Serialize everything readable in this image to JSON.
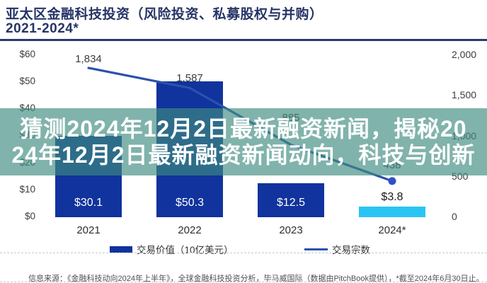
{
  "header": {
    "title_line1": "亚太区金融科技投资（风险投资、私募股权与并购）",
    "title_line2": "2021-2024*"
  },
  "overlay": {
    "text_line1": "猜测2024年12月2日最新融资新闻，揭秘20",
    "text_line2": "24年12月2日最新融资新闻动向，科技与创新",
    "band_color": "#3e8c80"
  },
  "legend": {
    "bar_label": "交易价值（10亿美元）",
    "line_label": "交易宗数"
  },
  "footer": {
    "source": "信息来源：《金融科技动向2024年上半年》，全球金融科技投资分析，毕马威国际（数据由PitchBook提供），*截至2024年6月30日止。"
  },
  "chart_data": {
    "type": "bar",
    "title": "亚太区金融科技投资（风险投资、私募股权与并购）2021-2024*",
    "categories": [
      "2021",
      "2022",
      "2023",
      "2024*"
    ],
    "series": [
      {
        "name": "交易价值（10亿美元）",
        "type": "bar",
        "axis": "left",
        "values": [
          30.1,
          50.3,
          12.5,
          3.8
        ],
        "value_labels": [
          "$30.1",
          "$50.3",
          "$12.5",
          "$3.8"
        ]
      },
      {
        "name": "交易宗数",
        "type": "line",
        "axis": "right",
        "values": [
          1834,
          1587,
          885,
          438
        ],
        "value_labels": [
          "1,834",
          "1,587",
          "885",
          "438"
        ]
      }
    ],
    "left_axis_ticks": [
      {
        "label": "$60",
        "value": 60
      },
      {
        "label": "$50",
        "value": 50
      },
      {
        "label": "$40",
        "value": 40
      },
      {
        "label": "$30",
        "value": 30
      },
      {
        "label": "$20",
        "value": 20
      },
      {
        "label": "$10",
        "value": 10
      },
      {
        "label": "$0",
        "value": 0
      }
    ],
    "right_axis_ticks": [
      {
        "label": "2,000",
        "value": 2000
      },
      {
        "label": "1,500",
        "value": 1500
      },
      {
        "label": "1,000",
        "value": 1000
      },
      {
        "label": "500",
        "value": 500
      },
      {
        "label": "0",
        "value": 0
      }
    ],
    "left_ylim": [
      0,
      60
    ],
    "right_ylim": [
      0,
      2000
    ],
    "grid": false,
    "legend_position": "bottom",
    "colors": {
      "bar": "#11339d",
      "bar_final": "#2ac4f4",
      "line": "#2a52ae",
      "line_dot": "#3050c8",
      "label_in_bar": "#ffffff",
      "label_above_bar": "#1a1a1a"
    }
  }
}
